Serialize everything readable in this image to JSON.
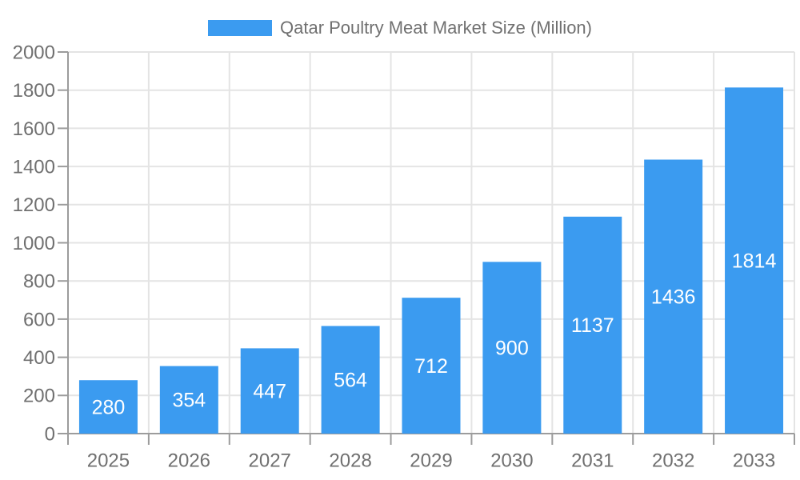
{
  "chart_data": {
    "type": "bar",
    "title": "Qatar Poultry Meat Market Size (Million)",
    "legend_position": "top",
    "categories": [
      "2025",
      "2026",
      "2027",
      "2028",
      "2029",
      "2030",
      "2031",
      "2032",
      "2033"
    ],
    "series": [
      {
        "name": "Qatar Poultry Meat Market Size (Million)",
        "values": [
          280,
          354,
          447,
          564,
          712,
          900,
          1137,
          1436,
          1814
        ]
      }
    ],
    "xlabel": "",
    "ylabel": "",
    "ylim": [
      0,
      2000
    ],
    "yticks": [
      0,
      200,
      400,
      600,
      800,
      1000,
      1200,
      1400,
      1600,
      1800,
      2000
    ],
    "grid": true,
    "value_labels_position": "center",
    "colors": {
      "bar": "#3B9BF0",
      "grid": "#E4E4E4",
      "axis": "#9C9C9C",
      "text": "#707070",
      "value_label": "#FFFFFF",
      "background": "#FFFFFF"
    }
  }
}
